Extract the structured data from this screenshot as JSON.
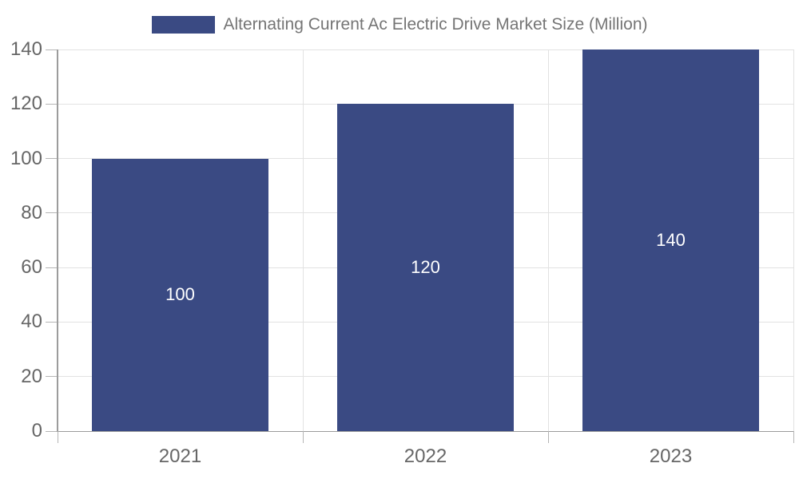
{
  "chart_data": {
    "type": "bar",
    "title": "Alternating Current Ac Electric Drive Market Size (Million)",
    "categories": [
      "2021",
      "2022",
      "2023"
    ],
    "values": [
      100,
      120,
      140
    ],
    "series": [
      {
        "name": "Alternating Current Ac Electric Drive Market Size (Million)",
        "values": [
          100,
          120,
          140
        ]
      }
    ],
    "bar_value_labels": [
      "100",
      "120",
      "140"
    ],
    "xlabel": "",
    "ylabel": "",
    "ylim": [
      0,
      140
    ],
    "yticks": [
      0,
      20,
      40,
      60,
      80,
      100,
      120,
      140
    ],
    "grid": true,
    "legend_position": "top",
    "colors": {
      "bar": "#3A4A83",
      "bar_value_text": "#FFFFFF",
      "gridline": "#E2E2E2",
      "axis_line": "#9C9C9C",
      "tick_mark": "#B5B5B5",
      "axis_text": "#666666",
      "legend_text": "#757575",
      "background": "#FFFFFF"
    }
  }
}
